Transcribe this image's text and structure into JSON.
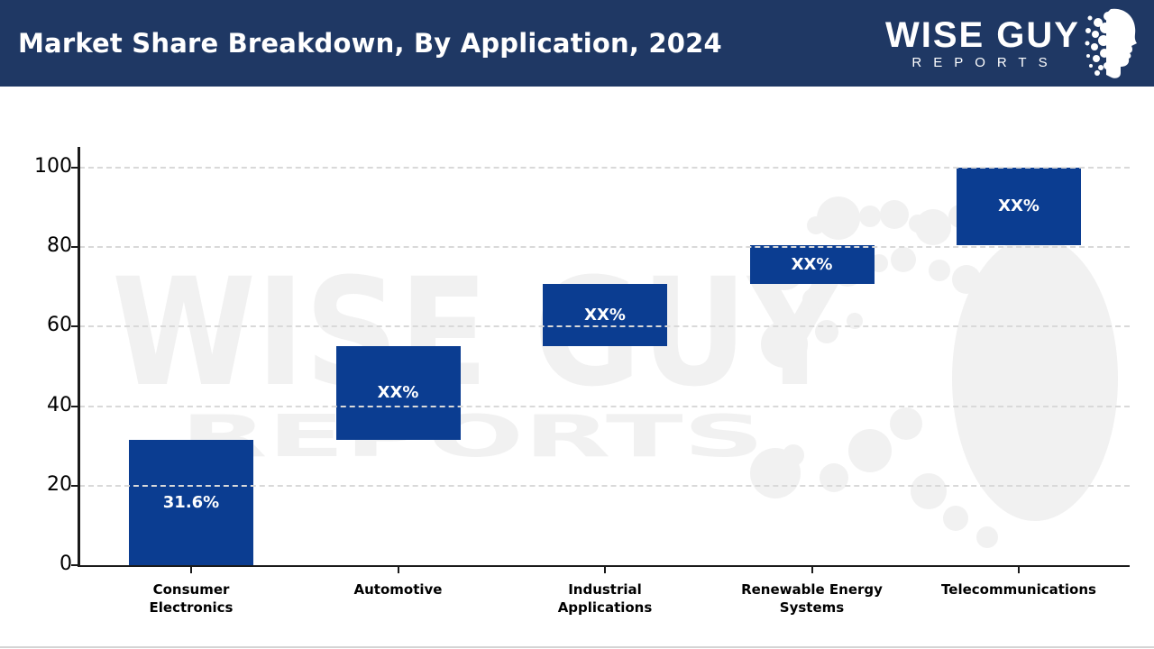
{
  "header": {
    "title": "Market Share Breakdown, By Application, 2024",
    "logo": {
      "wordmark": "WISE GUY",
      "subtext": "REPORTS"
    },
    "bg_color": "#1f3864"
  },
  "watermark": {
    "line1": "WISE GUY",
    "line2": "REPORTS"
  },
  "chart_data": {
    "type": "bar",
    "subtype": "floating-waterfall",
    "title": "Market Share Breakdown, By Application, 2024",
    "categories": [
      "Consumer Electronics",
      "Automotive",
      "Industrial Applications",
      "Renewable Energy Systems",
      "Telecommunications"
    ],
    "segments": [
      {
        "category": "Consumer Electronics",
        "tick_label": "Consumer\nElectronics",
        "label": "31.6%",
        "start": 0,
        "end": 31.6
      },
      {
        "category": "Automotive",
        "tick_label": "Automotive",
        "label": "XX%",
        "start": 31.6,
        "end": 55.1
      },
      {
        "category": "Industrial Applications",
        "tick_label": "Industrial\nApplications",
        "label": "XX%",
        "start": 55.1,
        "end": 70.7
      },
      {
        "category": "Renewable Energy Systems",
        "tick_label": "Renewable Energy\nSystems",
        "label": "XX%",
        "start": 70.7,
        "end": 80.5
      },
      {
        "category": "Telecommunications",
        "tick_label": "Telecommunications",
        "label": "XX%",
        "start": 80.5,
        "end": 100
      }
    ],
    "ylim": [
      0,
      100
    ],
    "yticks": [
      0,
      20,
      40,
      60,
      80,
      100
    ],
    "grid": "horizontal-dashed",
    "legend": "none",
    "bar_color": "#0b3d91",
    "bar_label_color": "#ffffff",
    "axis_color": "#1a1a1a",
    "grid_color": "#d9d9d9"
  }
}
